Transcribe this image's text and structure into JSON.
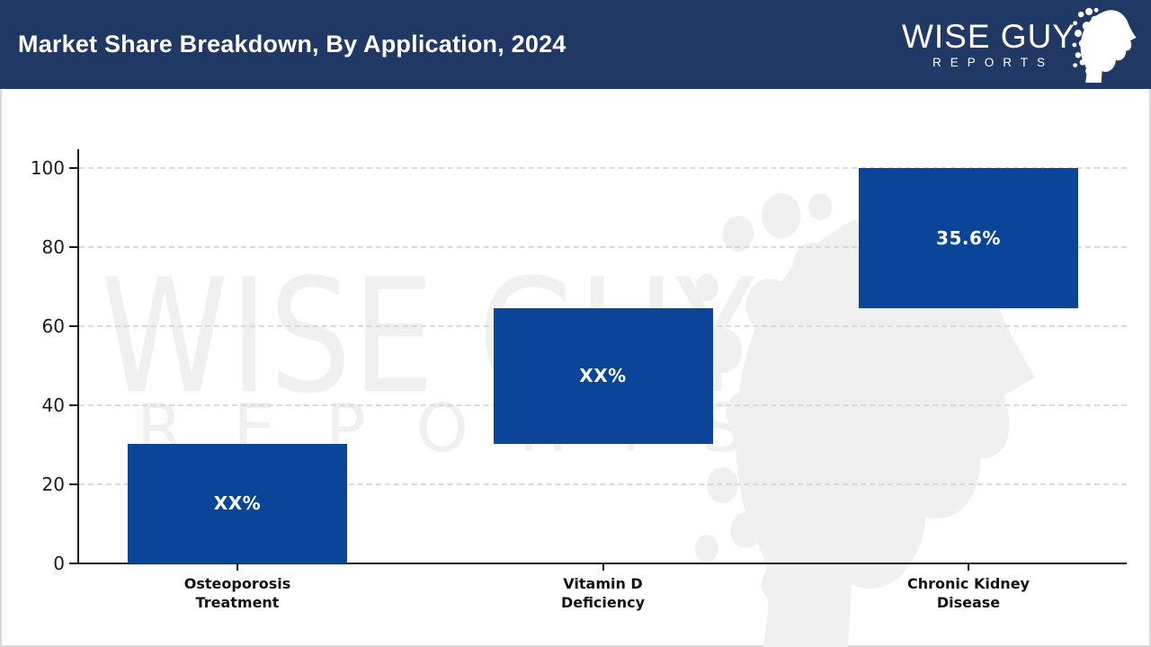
{
  "header": {
    "title": "Market Share Breakdown, By Application, 2024",
    "brand": {
      "name": "WISE GUY",
      "subtitle": "REPORTS"
    }
  },
  "watermark": {
    "line1": "WISE GUY",
    "line2": "REPORTS"
  },
  "chart_data": {
    "type": "bar",
    "subtype": "floating-waterfall",
    "title": "Market Share Breakdown, By Application, 2024",
    "categories": [
      [
        "Osteoporosis",
        "Treatment"
      ],
      [
        "Vitamin D",
        "Deficiency"
      ],
      [
        "Chronic Kidney",
        "Disease"
      ]
    ],
    "segments": [
      {
        "category": "Osteoporosis Treatment",
        "start": 0,
        "end": 30.3,
        "label": "XX%"
      },
      {
        "category": "Vitamin D Deficiency",
        "start": 30.3,
        "end": 64.4,
        "label": "XX%"
      },
      {
        "category": "Chronic Kidney Disease",
        "start": 64.4,
        "end": 100,
        "label": "35.6%"
      }
    ],
    "xlabel": "",
    "ylabel": "",
    "yticks": [
      0,
      20,
      40,
      60,
      80,
      100
    ],
    "ylim": [
      0,
      105
    ],
    "grid": "horizontal-dashed",
    "legend": "none",
    "bar_color": "#0a459a",
    "bar_label_color": "#ffffff",
    "axis_color": "#1a1a1a",
    "gridline_color": "#d9d9d9"
  },
  "colors": {
    "header_bg": "#1f3864",
    "page_bg": "#ffffff",
    "watermark": "#f0f0f0",
    "frame_border": "#d9d9d9"
  }
}
